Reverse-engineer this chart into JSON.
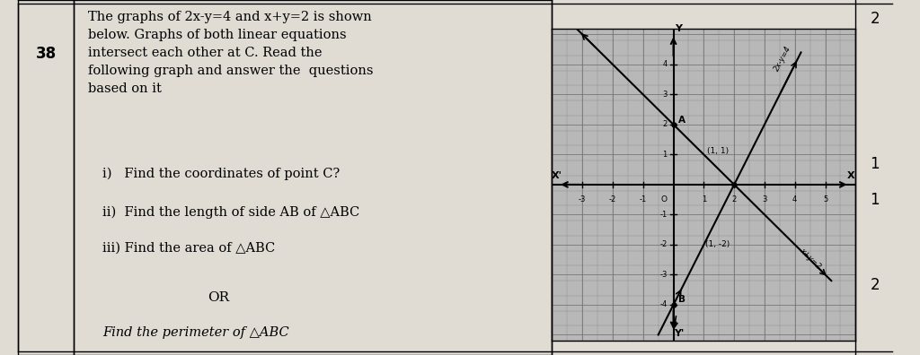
{
  "question_number": "38",
  "question_text": "The graphs of 2x-y=4 and x+y=2 is shown\nbelow. Graphs of both linear equations\nintersect each other at C. Read the\nfollowing graph and answer the  questions\nbased on it",
  "sub_questions": [
    "i)   Find the coordinates of point C?",
    "ii)  Find the length of side AB of △ABC",
    "iii) Find the area of △ABC"
  ],
  "or_text": "OR",
  "or_sub": "Find the perimeter of △ABC",
  "right_marks_top": "2",
  "right_marks": [
    "1",
    "1",
    "2"
  ],
  "graph_bg": "#b8b8b8",
  "graph_xlim": [
    -4,
    6
  ],
  "graph_ylim": [
    -5.2,
    5.2
  ],
  "point_A": [
    0,
    2
  ],
  "point_B": [
    0,
    -4
  ],
  "point_C": [
    2,
    0
  ],
  "point_11": [
    1,
    1
  ],
  "point_1m2": [
    1,
    -2
  ],
  "text_color": "#000000",
  "page_bg_left": "#d8d4cc",
  "page_bg_main": "#e0dcd4",
  "page_bg_right": "#ccc8c0"
}
